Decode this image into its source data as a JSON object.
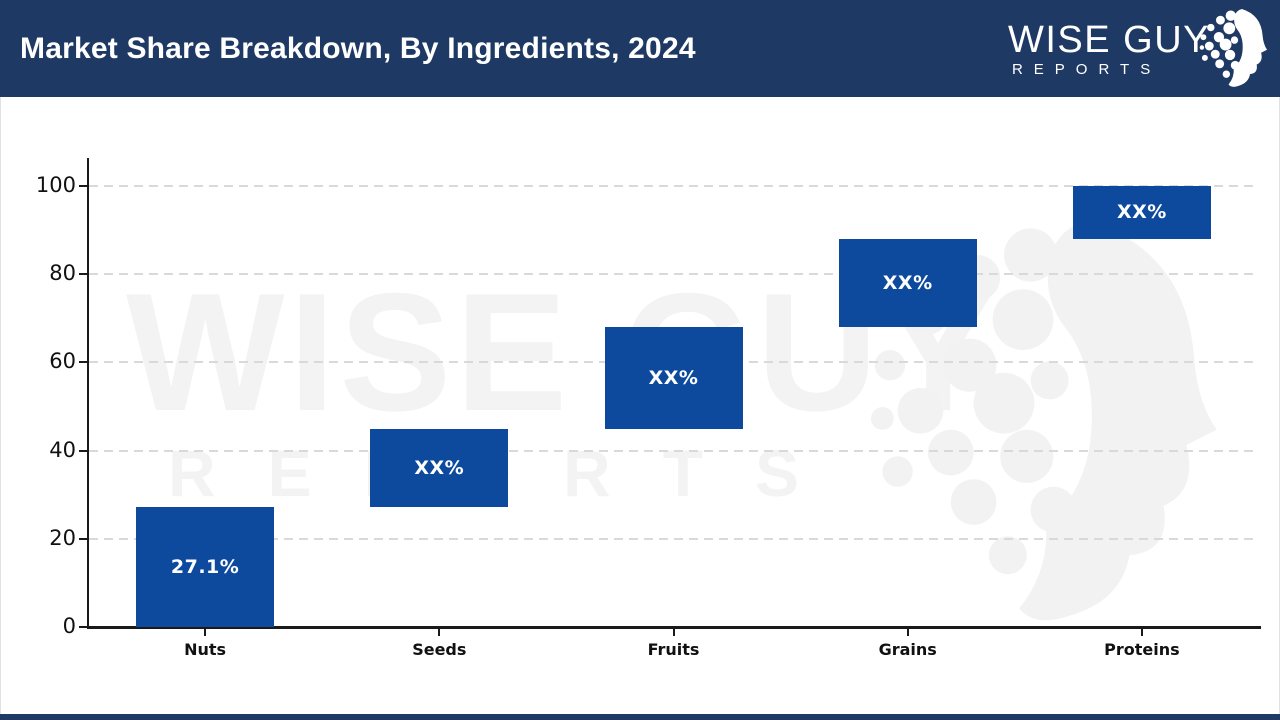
{
  "header": {
    "title": "Market Share Breakdown, By Ingredients, 2024",
    "logo": {
      "line1": "WISE GUY",
      "line2": "REPORTS"
    }
  },
  "watermark": {
    "line1": "WISE GUY",
    "line2": "REPORTS"
  },
  "colors": {
    "header_bg": "#1e3a64",
    "footer_bg": "#1e3a64",
    "bar": "#0d4a9e",
    "bar_label": "#ffffff",
    "grid": "#d9d9d9",
    "axis": "#1a1a1a",
    "watermark": "#f3f3f3"
  },
  "chart_data": {
    "type": "bar",
    "subtype": "waterfall",
    "title": "Market Share Breakdown, By Ingredients, 2024",
    "categories": [
      "Nuts",
      "Seeds",
      "Fruits",
      "Grains",
      "Proteins"
    ],
    "series": [
      {
        "name": "Market Share",
        "segments": [
          {
            "category": "Nuts",
            "start": 0,
            "end": 27.1,
            "label": "27.1%"
          },
          {
            "category": "Seeds",
            "start": 27.1,
            "end": 45,
            "label": "XX%"
          },
          {
            "category": "Fruits",
            "start": 45,
            "end": 68,
            "label": "XX%"
          },
          {
            "category": "Grains",
            "start": 68,
            "end": 88,
            "label": "XX%"
          },
          {
            "category": "Proteins",
            "start": 88,
            "end": 100,
            "label": "XX%"
          }
        ]
      }
    ],
    "xlabel": "",
    "ylabel": "",
    "ylim": [
      0,
      100
    ],
    "yticks": [
      0,
      20,
      40,
      60,
      80,
      100
    ],
    "grid": "horizontal-dashed",
    "legend": "none"
  }
}
